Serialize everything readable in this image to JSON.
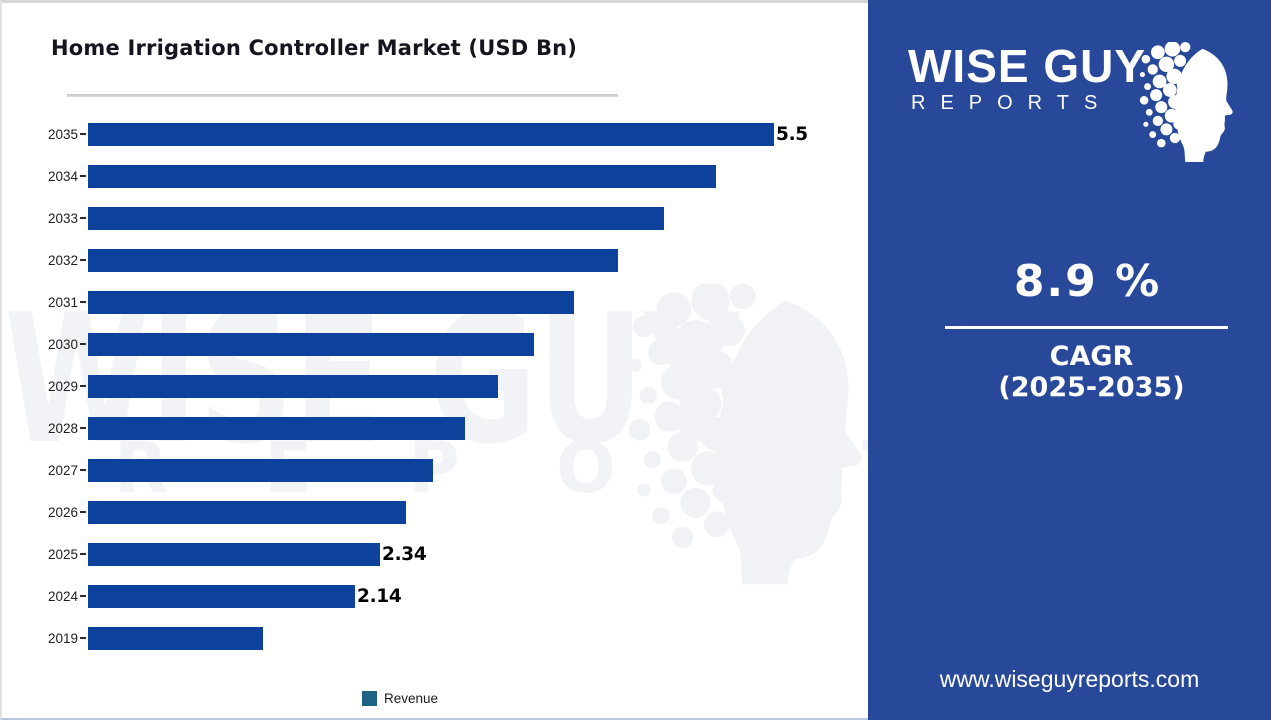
{
  "chart_data": {
    "type": "bar",
    "orientation": "horizontal",
    "title": "Home Irrigation Controller Market (USD Bn)",
    "xlabel": "",
    "ylabel": "",
    "categories": [
      "2035",
      "2034",
      "2033",
      "2032",
      "2031",
      "2030",
      "2029",
      "2028",
      "2027",
      "2026",
      "2025",
      "2024",
      "2019"
    ],
    "values": [
      5.5,
      5.04,
      4.62,
      4.25,
      3.9,
      3.58,
      3.29,
      3.02,
      2.77,
      2.55,
      2.34,
      2.14,
      1.4
    ],
    "data_labels": [
      "5.5",
      "",
      "",
      "",
      "",
      "",
      "",
      "",
      "",
      "",
      "2.34",
      "2.14",
      ""
    ],
    "xlim": [
      0,
      6.27
    ],
    "grid": false,
    "legend_position": "bottom-center",
    "legend": [
      {
        "label": "Revenue",
        "color": "#1e6285"
      }
    ],
    "bar_color": "#0c429c"
  },
  "sidebar": {
    "background": "#28489a",
    "logo_line1": "WISE GUY",
    "logo_line2": "REPORTS",
    "cagr_value": "8.9 %",
    "cagr_label_line1": "CAGR",
    "cagr_label_line2": "(2025-2035)",
    "website": "www.wiseguyreports.com"
  },
  "watermark": {
    "line1": "WISE GUY",
    "line2": "R E P O R T S"
  }
}
